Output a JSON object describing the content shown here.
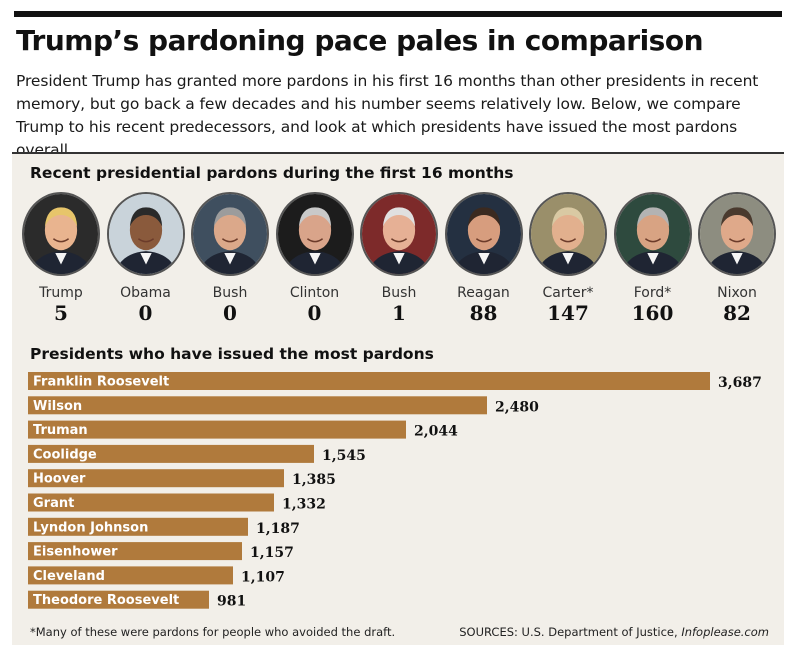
{
  "header": {
    "title": "Trump’s pardoning pace pales in comparison",
    "dek": "President Trump has granted more pardons in his first 16 months than other presidents in recent memory, but go back a few decades and his number seems relatively low. Below, we compare Trump to his recent predecessors, and look at which presidents have issued the most pardons overall."
  },
  "chart_data": [
    {
      "type": "table",
      "title": "Recent presidential pardons during the first 16 months",
      "categories": [
        "Trump",
        "Obama",
        "Bush",
        "Clinton",
        "Bush",
        "Reagan",
        "Carter*",
        "Ford*",
        "Nixon"
      ],
      "values": [
        5,
        0,
        0,
        0,
        1,
        88,
        147,
        160,
        82
      ]
    },
    {
      "type": "bar",
      "orientation": "horizontal",
      "title": "Presidents who have issued the most pardons",
      "categories": [
        "Franklin Roosevelt",
        "Wilson",
        "Truman",
        "Coolidge",
        "Hoover",
        "Grant",
        "Lyndon Johnson",
        "Eisenhower",
        "Cleveland",
        "Theodore Roosevelt"
      ],
      "values": [
        3687,
        2480,
        2044,
        1545,
        1385,
        1332,
        1187,
        1157,
        1107,
        981
      ],
      "value_labels": [
        "3,687",
        "2,480",
        "2,044",
        "1,545",
        "1,385",
        "1,332",
        "1,187",
        "1,157",
        "1,107",
        "981"
      ],
      "bar_color": "#b07a3c",
      "xlim": [
        0,
        3687
      ]
    }
  ],
  "footer": {
    "footnote": "*Many of these were pardons for people who avoided the draft.",
    "sources_prefix": "SOURCES: U.S. Department of Justice, ",
    "sources_italic": "Infoplease.com"
  }
}
